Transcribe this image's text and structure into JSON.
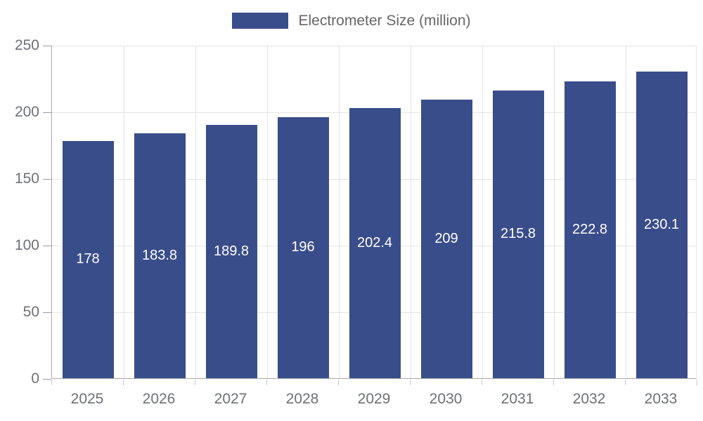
{
  "chart_data": {
    "type": "bar",
    "title": "",
    "legend": "Electrometer Size (million)",
    "categories": [
      "2025",
      "2026",
      "2027",
      "2028",
      "2029",
      "2030",
      "2031",
      "2032",
      "2033"
    ],
    "series": [
      {
        "name": "Electrometer Size (million)",
        "values": [
          178,
          183.8,
          189.8,
          196,
          202.4,
          209,
          215.8,
          222.8,
          230.1
        ]
      }
    ],
    "xlabel": "",
    "ylabel": "",
    "ylim": [
      0,
      250
    ],
    "y_ticks": [
      0,
      50,
      100,
      150,
      200,
      250
    ],
    "grid": "horizontal and vertical gridlines on",
    "legend_position": "top-center",
    "value_labels_position": "inside-center",
    "colors": {
      "bar": "#3A4D8B",
      "bar_label": "#ffffff",
      "axis_line": "#A8A8A8",
      "grid_line": "#E4E4E4",
      "tick_text": "#6E7079",
      "legend_text": "#666666",
      "background": "#ffffff"
    }
  }
}
